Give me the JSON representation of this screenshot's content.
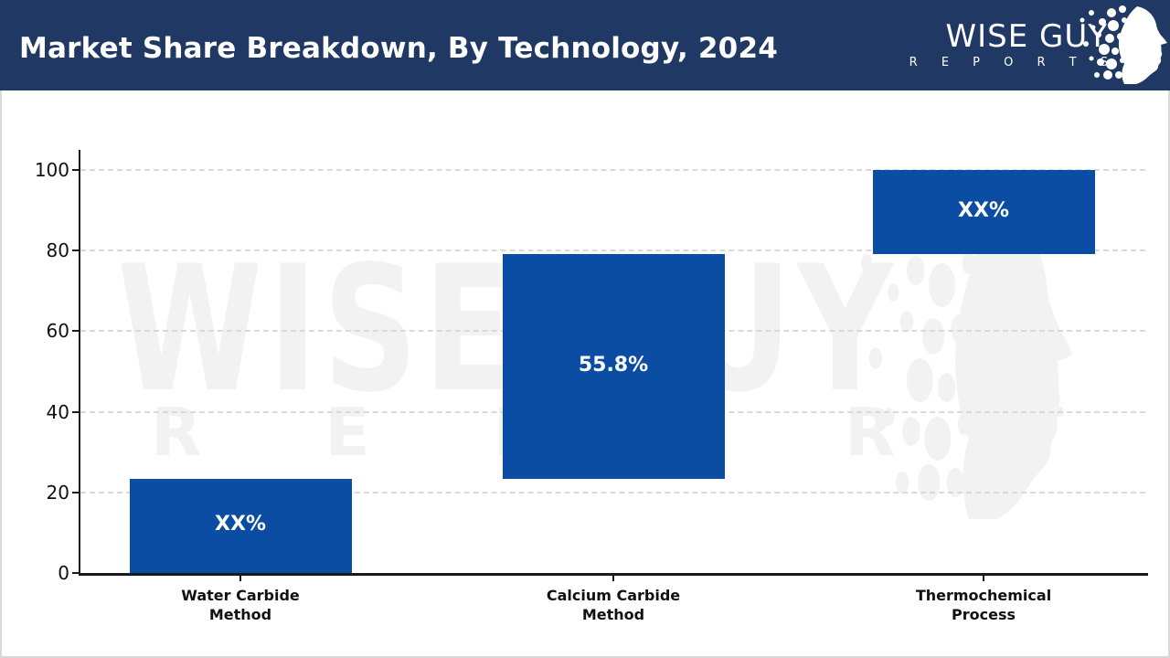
{
  "header": {
    "title": "Market Share Breakdown, By Technology, 2024",
    "brand_line1": "WISE GUY",
    "brand_line2": "R E P O R T S",
    "bg_color": "#203864"
  },
  "watermark": {
    "line1": "WISE GUY",
    "line2": "R E P O R T S",
    "color": "#f2f2f2"
  },
  "chart_data": {
    "type": "bar",
    "subtype": "waterfall-segmented-market-share",
    "title": "Market Share Breakdown, By Technology, 2024",
    "categories": [
      "Water Carbide Method",
      "Calcium Carbide Method",
      "Thermochemical Process"
    ],
    "categories_2line": [
      [
        "Water Carbide",
        "Method"
      ],
      [
        "Calcium Carbide",
        "Method"
      ],
      [
        "Thermochemical",
        "Process"
      ]
    ],
    "segments": [
      {
        "category": "Water Carbide Method",
        "start": 0,
        "end": 23.4,
        "label": "XX%"
      },
      {
        "category": "Calcium Carbide Method",
        "start": 23.4,
        "end": 79.2,
        "label": "55.8%"
      },
      {
        "category": "Thermochemical Process",
        "start": 79.2,
        "end": 100,
        "label": "XX%"
      }
    ],
    "ylim": [
      0,
      100
    ],
    "yticks": [
      0,
      20,
      40,
      60,
      80,
      100
    ],
    "xlabel": "",
    "ylabel": "",
    "legend": "none",
    "grid": {
      "horizontal": true,
      "style": "dashed",
      "color": "#d9d9d9"
    },
    "bar_color": "#0b4da2",
    "bar_label_color": "#ffffff",
    "axis_color": "#1a1a1a"
  }
}
